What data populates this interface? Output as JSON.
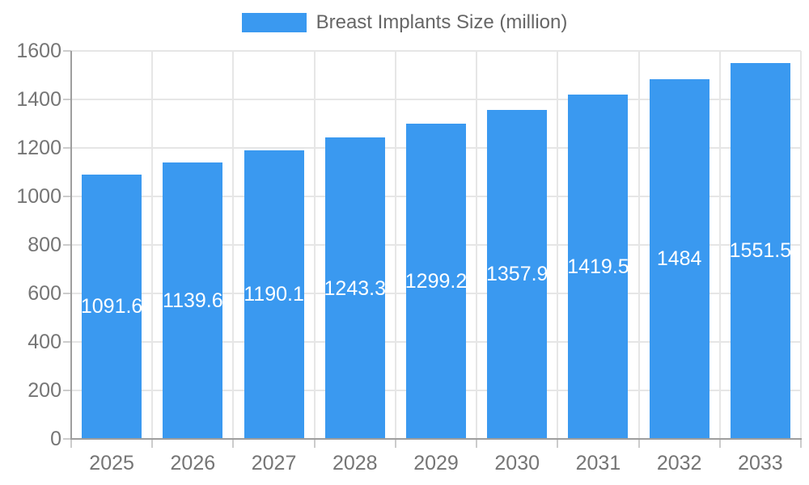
{
  "legend": {
    "label": "Breast Implants Size (million)"
  },
  "chart_data": {
    "type": "bar",
    "title": "Breast Implants Size (million)",
    "categories": [
      "2025",
      "2026",
      "2027",
      "2028",
      "2029",
      "2030",
      "2031",
      "2032",
      "2033"
    ],
    "values": [
      1091.6,
      1139.6,
      1190.1,
      1243.3,
      1299.2,
      1357.9,
      1419.5,
      1484,
      1551.5
    ],
    "value_labels": [
      "1091.6",
      "1139.6",
      "1190.1",
      "1243.3",
      "1299.2",
      "1357.9",
      "1419.5",
      "1484",
      "1551.5"
    ],
    "xlabel": "",
    "ylabel": "",
    "ylim": [
      0,
      1600
    ],
    "ytick_step": 200,
    "ytick_labels": [
      "0",
      "200",
      "400",
      "600",
      "800",
      "1000",
      "1200",
      "1400",
      "1600"
    ],
    "grid": true,
    "legend_position": "top",
    "bar_color": "#3a99f0",
    "value_label_color": "#ffffff",
    "axis_text_color": "#757575",
    "gridline_color": "#e6e6e6",
    "axis_line_color": "#9e9e9e"
  }
}
